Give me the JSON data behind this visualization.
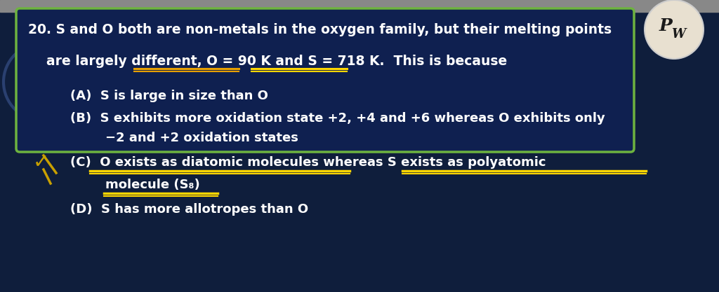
{
  "bg_color": "#0f1e3c",
  "top_bar_color": "#888888",
  "question_box_bg": "#0f2050",
  "question_box_border": "#6db33f",
  "text_color_white": "#ffffff",
  "text_color_yellow": "#ffd700",
  "underline_color_yellow": "#ffd700",
  "underline_color_orange": "#e8a000",
  "font_size_question": 13.5,
  "font_size_options": 13,
  "q_line1": "20. S and O both are non-metals in the oxygen family, but their melting points",
  "q_line2": "    are largely different, O = 90 K and S = 718 K. This is because",
  "opt_A": "(A)  S is large in size than O",
  "opt_B1": "(B)  S exhibits more oxidation state +2, +4 and +6 whereas O exhibits only",
  "opt_B2": "        −2 and +2 oxidation states",
  "opt_C1": "(C)  O exists as diatomic molecules whereas S exists as polyatomic",
  "opt_C2": "        molecule (S₈)",
  "opt_D": "(D)  S has more allotropes than O"
}
